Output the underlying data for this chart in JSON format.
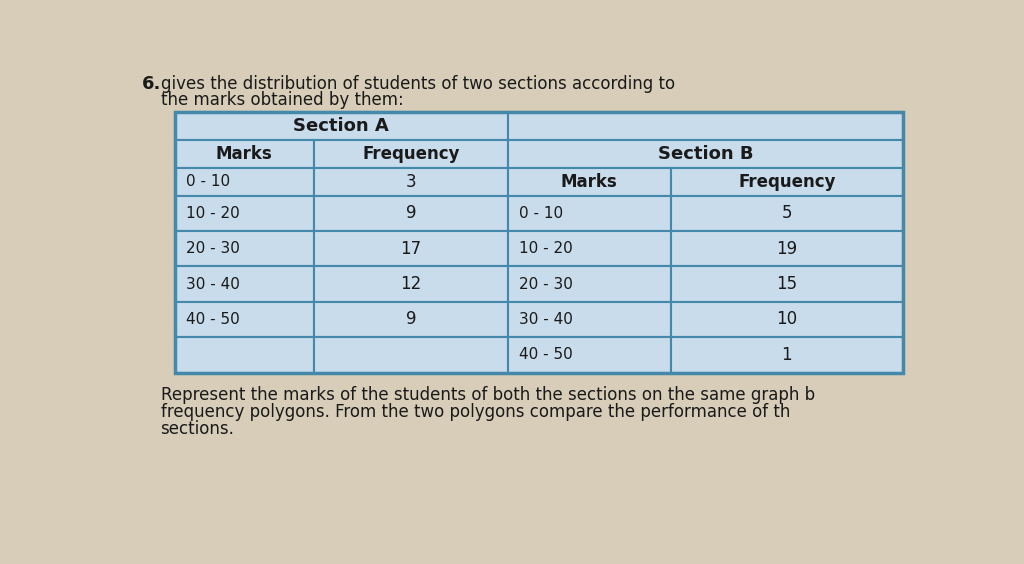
{
  "section_a_header": "Section A",
  "section_b_header": "Section B",
  "col_marks": "Marks",
  "col_freq": "Frequency",
  "section_a_marks": [
    "0 - 10",
    "10 - 20",
    "20 - 30",
    "30 - 40",
    "40 - 50"
  ],
  "section_a_freq": [
    "3",
    "9",
    "17",
    "12",
    "9"
  ],
  "section_b_marks": [
    "0 - 10",
    "10 - 20",
    "20 - 30",
    "30 - 40",
    "40 - 50"
  ],
  "section_b_freq": [
    "5",
    "19",
    "15",
    "10",
    "1"
  ],
  "header_line1": "gives the distribution of students of two sections according to",
  "header_line2": "the marks obtained by them:",
  "footer_line1": "Represent the marks of the students of both the sections on the same graph b",
  "footer_line2": "frequency polygons. From the two polygons compare the performance of th",
  "footer_line3": "sections.",
  "page_bg": "#d8cdb8",
  "table_fill": "#c8dcec",
  "border_color": "#4488aa",
  "text_color": "#1a1a1a",
  "q_num": "6."
}
